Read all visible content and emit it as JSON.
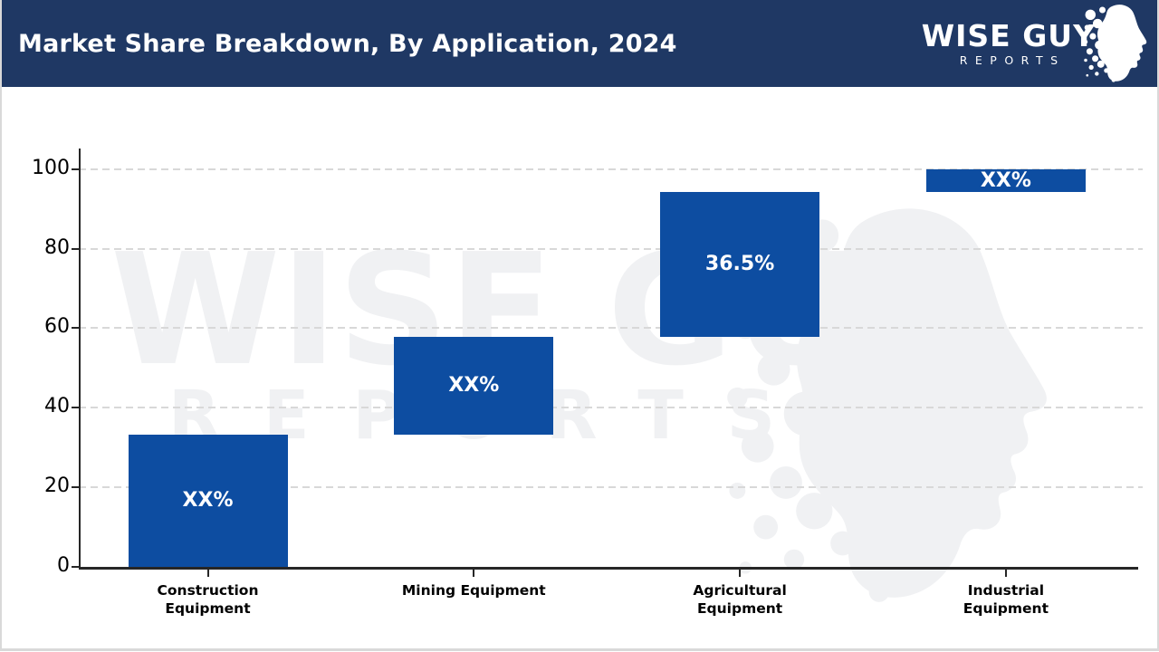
{
  "header": {
    "title": "Market Share Breakdown, By Application, 2024",
    "logo": {
      "name": "WISE GUY",
      "tagline": "REPORTS"
    }
  },
  "watermark": {
    "big_text": "WISE GUY",
    "small_text": "REPORTS"
  },
  "colors": {
    "header_bg": "#1f3864",
    "bar_blue": "#0d4da1",
    "watermark_gray": "#f0f1f3",
    "gridline_gray": "#d8d8d8",
    "axis_dark": "#262626",
    "title_text": "#ffffff",
    "frame_border": "#d9d9d9"
  },
  "chart_data": {
    "type": "bar",
    "variant": "floating-segment-waterfall",
    "title": "Market Share Breakdown, By Application, 2024",
    "categories": [
      "Construction\nEquipment",
      "Mining Equipment",
      "Agricultural\nEquipment",
      "Industrial\nEquipment"
    ],
    "bars": [
      {
        "category": "Construction Equipment",
        "start": 0,
        "end": 33.3,
        "size_est": 33.3,
        "label": "XX%"
      },
      {
        "category": "Mining Equipment",
        "start": 33.3,
        "end": 57.8,
        "size_est": 24.5,
        "label": "XX%"
      },
      {
        "category": "Agricultural Equipment",
        "start": 57.8,
        "end": 94.3,
        "size_est": 36.5,
        "label": "36.5%"
      },
      {
        "category": "Industrial Equipment",
        "start": 94.3,
        "end": 100,
        "size_est": 5.7,
        "label": "XX%"
      }
    ],
    "xlabel": "",
    "ylabel": "",
    "yticks": [
      0,
      20,
      40,
      60,
      80,
      100
    ],
    "ylim": [
      0,
      100
    ],
    "grid": "horizontal-dashed",
    "legend": "none",
    "bar_color": "#0d4da1",
    "bar_label_color": "#ffffff"
  }
}
